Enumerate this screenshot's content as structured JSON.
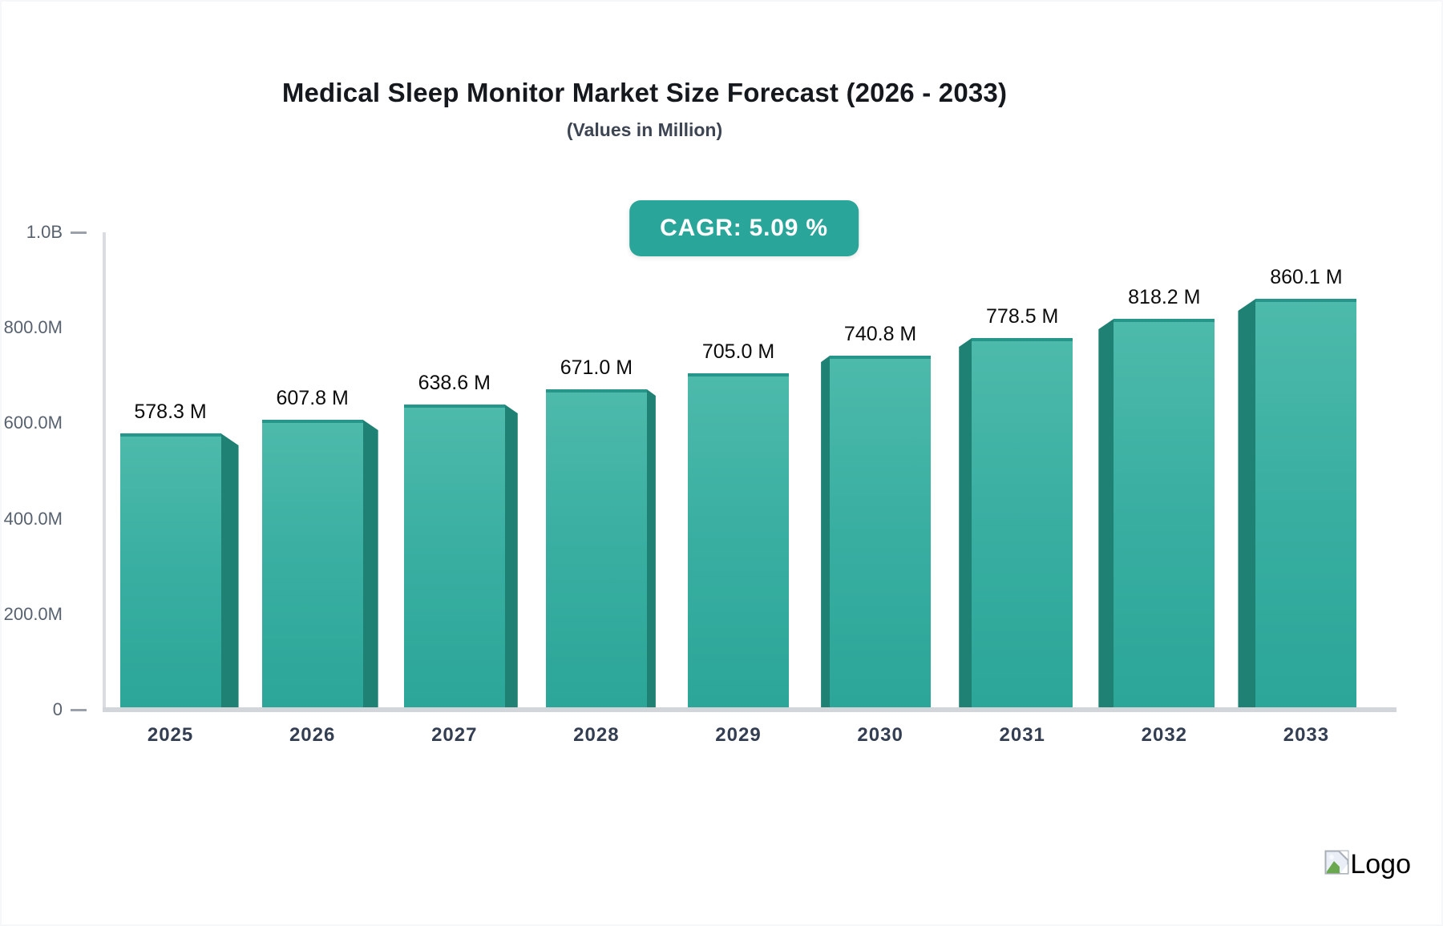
{
  "header": {
    "title": "Medical Sleep Monitor Market Size Forecast (2026 - 2033)",
    "subtitle": "(Values in Million)",
    "cagr_badge": "CAGR: 5.09 %"
  },
  "chart_data": {
    "type": "bar",
    "title": "Medical Sleep Monitor Market Size Forecast (2026 - 2033)",
    "subtitle": "(Values in Million)",
    "cagr_text": "CAGR: 5.09 %",
    "categories": [
      "2025",
      "2026",
      "2027",
      "2028",
      "2029",
      "2030",
      "2031",
      "2032",
      "2033"
    ],
    "values": [
      578.3,
      607.8,
      638.6,
      671.0,
      705.0,
      740.8,
      778.5,
      818.2,
      860.1
    ],
    "value_labels": [
      "578.3 M",
      "607.8 M",
      "638.6 M",
      "671.0 M",
      "705.0 M",
      "740.8 M",
      "778.5 M",
      "818.2 M",
      "860.1 M"
    ],
    "xlabel": "",
    "ylabel": "",
    "ylim": [
      0,
      1000
    ],
    "y_axis": {
      "ticks": [
        {
          "label": "1.0B",
          "value": 1000,
          "dash": true
        },
        {
          "label": "800.0M",
          "value": 800,
          "dash": false
        },
        {
          "label": "600.0M",
          "value": 600,
          "dash": false
        },
        {
          "label": "400.0M",
          "value": 400,
          "dash": false
        },
        {
          "label": "200.0M",
          "value": 200,
          "dash": false
        },
        {
          "label": "0",
          "value": 0,
          "dash": true
        }
      ]
    },
    "grid": false,
    "legend": "none",
    "style": {
      "bar_face_top": "#4dbaab",
      "bar_face_bottom": "#2ba698",
      "bar_top_lip": "#27968a",
      "bar_side_dark": "#1f8173",
      "badge_background": "#29a699",
      "axis_line": "#dadce1",
      "baseline": "#d2d5da"
    }
  },
  "footer": {
    "logo_alt": "Logo"
  }
}
